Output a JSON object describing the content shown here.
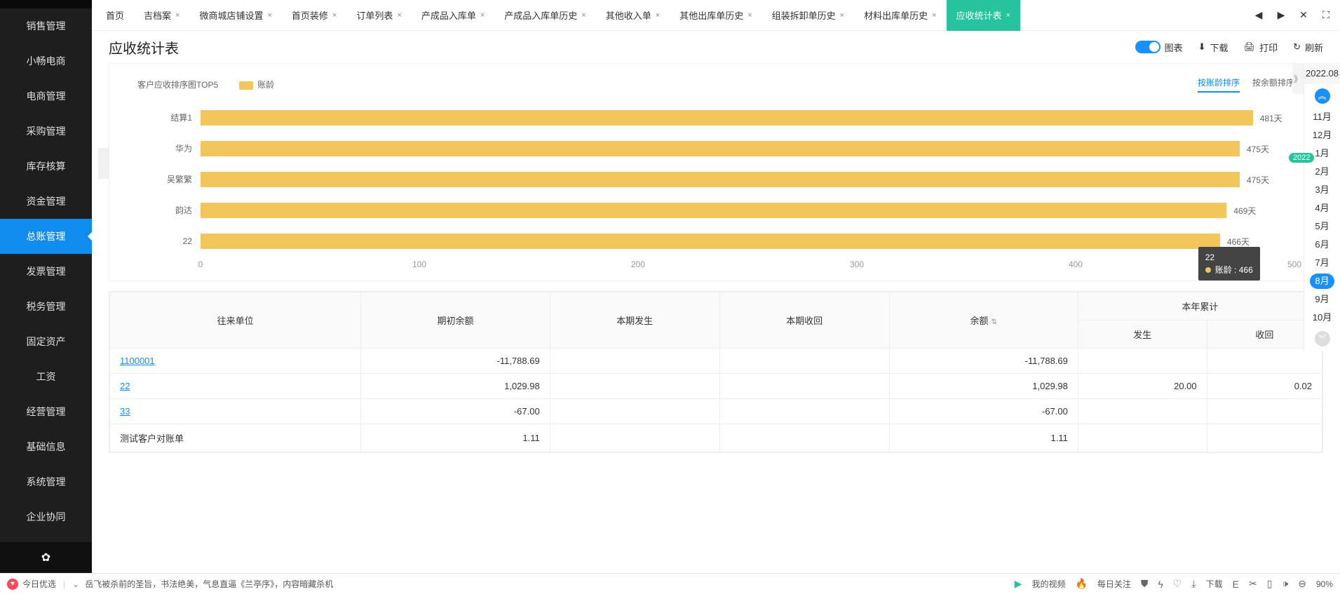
{
  "sidebar": {
    "items": [
      "销售管理",
      "小畅电商",
      "电商管理",
      "采购管理",
      "库存核算",
      "资金管理",
      "总账管理",
      "发票管理",
      "税务管理",
      "固定资产",
      "工资",
      "经营管理",
      "基础信息",
      "系统管理",
      "企业协同"
    ],
    "activeIndex": 6
  },
  "tabs": {
    "items": [
      "首页",
      "吉档案",
      "微商城店铺设置",
      "首页装修",
      "订单列表",
      "产成品入库单",
      "产成品入库单历史",
      "其他收入单",
      "其他出库单历史",
      "组装拆卸单历史",
      "材料出库单历史",
      "应收统计表"
    ],
    "closable": [
      false,
      true,
      true,
      true,
      true,
      true,
      true,
      true,
      true,
      true,
      true,
      true
    ],
    "activeIndex": 11
  },
  "page": {
    "title": "应收统计表"
  },
  "toolbar": {
    "chartLabel": "图表",
    "download": "下载",
    "print": "打印",
    "refresh": "刷新"
  },
  "chart": {
    "title": "客户应收排序图TOP5",
    "legendLabel": "账龄",
    "sortTabs": [
      "按账龄排序",
      "按余额排序"
    ],
    "sortActive": 0,
    "barColor": "#f3c65b",
    "xMax": 500,
    "xTicks": [
      0,
      100,
      200,
      300,
      400,
      500
    ],
    "series": [
      {
        "name": "结算1",
        "value": 481,
        "label": "481天"
      },
      {
        "name": "华为",
        "value": 475,
        "label": "475天"
      },
      {
        "name": "吴繁繁",
        "value": 475,
        "label": "475天"
      },
      {
        "name": "韵达",
        "value": 469,
        "label": "469天"
      },
      {
        "name": "22",
        "value": 466,
        "label": "466天"
      }
    ],
    "tooltip": {
      "title": "22",
      "line": "账龄 : 466"
    }
  },
  "table": {
    "headers": {
      "unit": "往来单位",
      "open": "期初余额",
      "occur": "本期发生",
      "recv": "本期收回",
      "balance": "余额",
      "ytd": "本年累计",
      "ytdOccur": "发生",
      "ytdRecv": "收回"
    },
    "rows": [
      {
        "unit": "1100001",
        "link": true,
        "open": "-11,788.69",
        "occur": "",
        "recv": "",
        "balance": "-11,788.69",
        "ytdOccur": "",
        "ytdRecv": ""
      },
      {
        "unit": "22",
        "link": true,
        "open": "1,029.98",
        "occur": "",
        "recv": "",
        "balance": "1,029.98",
        "ytdOccur": "20.00",
        "ytdRecv": "0.02"
      },
      {
        "unit": "33",
        "link": true,
        "open": "-67.00",
        "occur": "",
        "recv": "",
        "balance": "-67.00",
        "ytdOccur": "",
        "ytdRecv": ""
      },
      {
        "unit": "测试客户对账单",
        "link": false,
        "open": "1.11",
        "occur": "",
        "recv": "",
        "balance": "1.11",
        "ytdOccur": "",
        "ytdRecv": ""
      }
    ]
  },
  "datePanel": {
    "header": "2022.08",
    "year": "2022",
    "months": [
      "11月",
      "12月",
      "1月",
      "2月",
      "3月",
      "4月",
      "5月",
      "6月",
      "7月",
      "8月",
      "9月",
      "10月"
    ],
    "activeIndex": 9
  },
  "taskbar": {
    "left1": "今日优选",
    "news": "岳飞被杀前的圣旨，书法绝美，气息直逼《兰亭序》，内容暗藏杀机",
    "myVideo": "我的视频",
    "dailyFocus": "每日关注",
    "download": "下载",
    "zoom": "90%"
  }
}
